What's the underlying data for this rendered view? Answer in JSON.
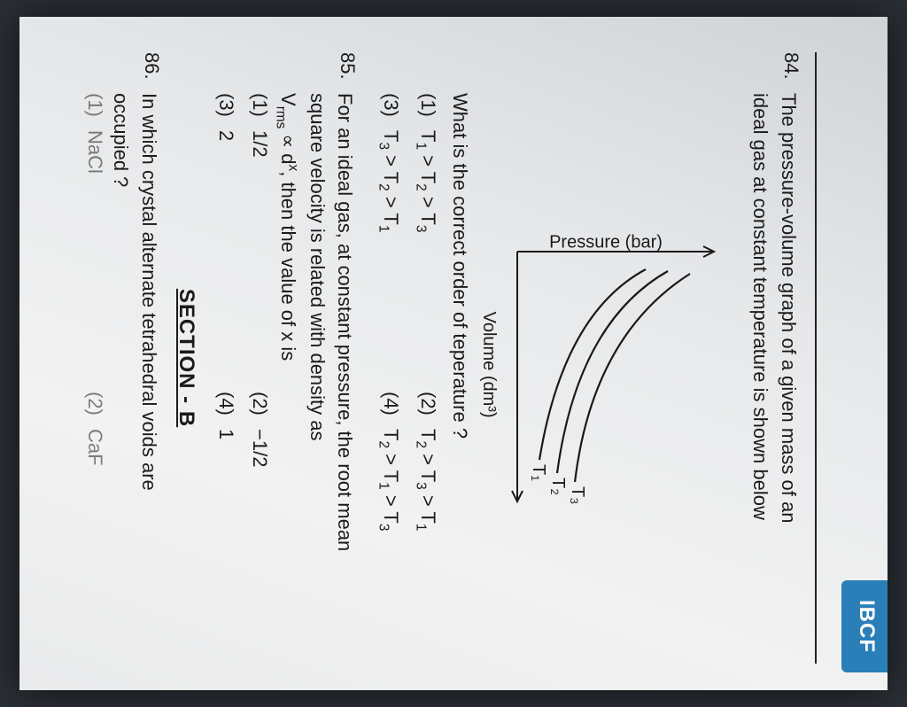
{
  "header_tab": "IBCF",
  "q84": {
    "num": "84.",
    "stem_line1": "The pressure-volume graph of a given mass of an",
    "stem_line2": "ideal gas at constant temperature is shown below",
    "graph": {
      "type": "line",
      "y_label": "Pressure (bar)",
      "x_label": "Volume (dm³)",
      "curve_color": "#1a1a1a",
      "axis_color": "#1a1a1a",
      "curves": [
        "T₃",
        "T₂",
        "T₁"
      ]
    },
    "sub_stem": "What is the correct order of teperature ?",
    "options": [
      {
        "tag": "(1)",
        "html": "T<sub>1</sub> > T<sub>2</sub> > T<sub>3</sub>"
      },
      {
        "tag": "(2)",
        "html": "T<sub>2</sub> > T<sub>3</sub> > T<sub>1</sub>"
      },
      {
        "tag": "(3)",
        "html": "T<sub>3</sub> > T<sub>2</sub> > T<sub>1</sub>"
      },
      {
        "tag": "(4)",
        "html": "T<sub>2</sub> > T<sub>1</sub> > T<sub>3</sub>"
      }
    ]
  },
  "q85": {
    "num": "85.",
    "stem_line1": "For an ideal gas, at constant pressure, the root mean",
    "stem_line2": "square velocity is related with density as",
    "stem_line3_html": "V<sub>rms</sub> ∝ d<sup>x</sup>, then the value of x is",
    "options": [
      {
        "tag": "(1)",
        "text": "1/2"
      },
      {
        "tag": "(2)",
        "text": "−1/2"
      },
      {
        "tag": "(3)",
        "text": "2"
      },
      {
        "tag": "(4)",
        "text": "1"
      }
    ]
  },
  "section_b": "SECTION - B",
  "q86": {
    "num": "86.",
    "stem_line1": "In which crystal alternate tetrahedral voids are",
    "stem_line2": "occupied ?",
    "options_partial": [
      {
        "tag": "(1)",
        "text": "NaCl"
      },
      {
        "tag": "(2)",
        "text": "CaF"
      }
    ]
  }
}
